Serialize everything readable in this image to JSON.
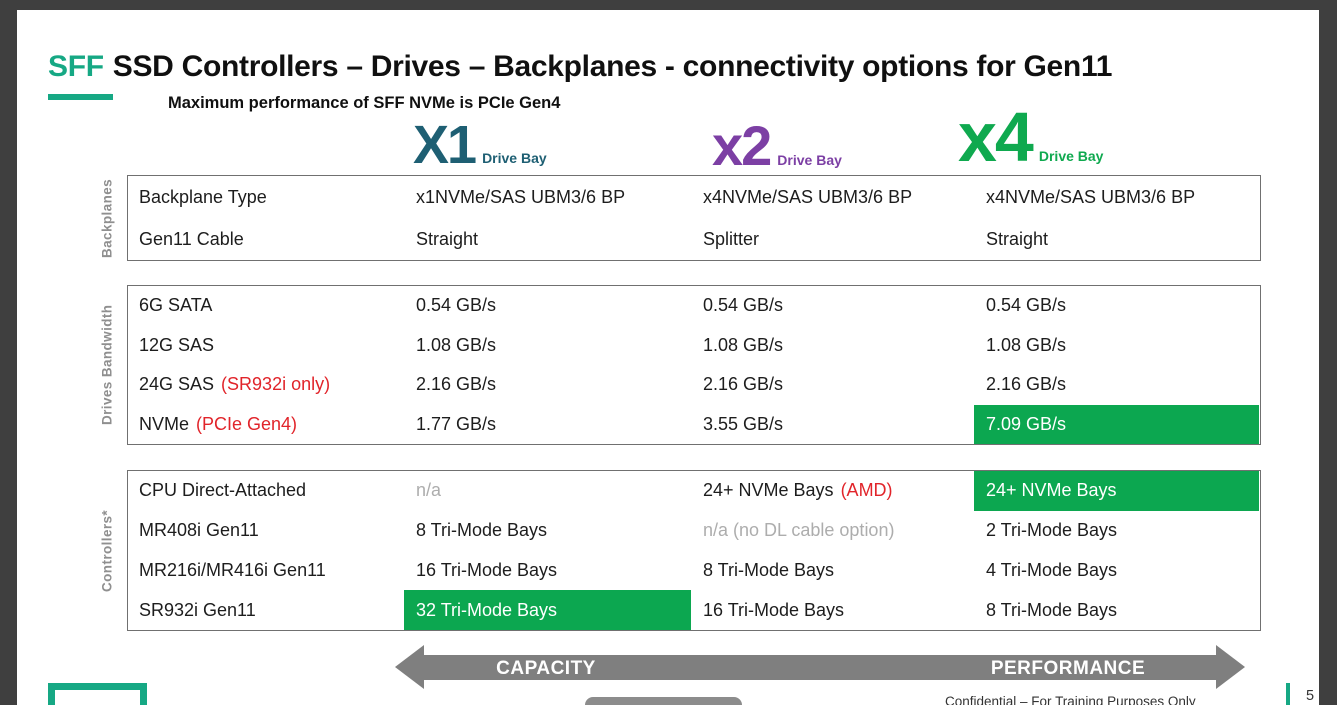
{
  "title": {
    "highlight": "SFF",
    "rest": "SSD Controllers – Drives – Backplanes - connectivity options for Gen11"
  },
  "subtitle": "Maximum performance of SFF NVMe is PCIe Gen4",
  "columns": [
    {
      "big": "X1",
      "small": "Drive Bay",
      "color": "#1E5F73"
    },
    {
      "big": "x2",
      "small": "Drive Bay",
      "color": "#7C3FA4"
    },
    {
      "big": "x4",
      "small": "Drive Bay",
      "color": "#0FA94F"
    }
  ],
  "sections": [
    {
      "label": "Backplanes",
      "rows": [
        {
          "label": "Backplane Type",
          "cells": [
            {
              "text": "x1NVMe/SAS UBM3/6 BP"
            },
            {
              "text": "x4NVMe/SAS UBM3/6 BP"
            },
            {
              "text": "x4NVMe/SAS UBM3/6 BP"
            }
          ]
        },
        {
          "label": "Gen11 Cable",
          "cells": [
            {
              "text": "Straight"
            },
            {
              "text": "Splitter"
            },
            {
              "text": "Straight"
            }
          ]
        }
      ]
    },
    {
      "label": "Drives Bandwidth",
      "rows": [
        {
          "label": "6G SATA",
          "cells": [
            {
              "text": "0.54 GB/s"
            },
            {
              "text": "0.54 GB/s"
            },
            {
              "text": "0.54 GB/s"
            }
          ]
        },
        {
          "label": "12G SAS",
          "cells": [
            {
              "text": "1.08 GB/s"
            },
            {
              "text": "1.08 GB/s"
            },
            {
              "text": "1.08 GB/s"
            }
          ]
        },
        {
          "label": "24G SAS",
          "note": "(SR932i only)",
          "cells": [
            {
              "text": "2.16 GB/s"
            },
            {
              "text": "2.16 GB/s"
            },
            {
              "text": "2.16 GB/s"
            }
          ]
        },
        {
          "label": "NVMe",
          "note": "(PCIe Gen4)",
          "cells": [
            {
              "text": "1.77 GB/s"
            },
            {
              "text": "3.55 GB/s"
            },
            {
              "text": "7.09 GB/s",
              "highlight": true
            }
          ]
        }
      ]
    },
    {
      "label": "Controllers*",
      "rows": [
        {
          "label": "CPU Direct-Attached",
          "cells": [
            {
              "text": "n/a",
              "muted": true
            },
            {
              "text": "24+ NVMe Bays",
              "note": "(AMD)"
            },
            {
              "text": "24+ NVMe Bays",
              "highlight": true
            }
          ]
        },
        {
          "label": "MR408i Gen11",
          "cells": [
            {
              "text": "8 Tri-Mode Bays"
            },
            {
              "text": "n/a (no DL cable option)",
              "muted": true
            },
            {
              "text": "2 Tri-Mode Bays"
            }
          ]
        },
        {
          "label": "MR216i/MR416i Gen11",
          "cells": [
            {
              "text": "16 Tri-Mode Bays"
            },
            {
              "text": "8 Tri-Mode Bays"
            },
            {
              "text": "4 Tri-Mode Bays"
            }
          ]
        },
        {
          "label": "SR932i Gen11",
          "cells": [
            {
              "text": "32 Tri-Mode Bays",
              "highlight": true
            },
            {
              "text": "16 Tri-Mode Bays"
            },
            {
              "text": "8 Tri-Mode Bays"
            }
          ]
        }
      ]
    }
  ],
  "arrow": {
    "left_label": "CAPACITY",
    "right_label": "PERFORMANCE"
  },
  "footer": {
    "confidential": "Confidential – For Training Purposes Only",
    "page_number": "5"
  },
  "colors": {
    "hpe_green": "#16A884",
    "highlight_green": "#0CA750",
    "x1_teal": "#1E5F73",
    "x2_purple": "#7C3FA4",
    "x4_green": "#0FA94F",
    "alert_red": "#E1242A",
    "muted_gray": "#ADADAD",
    "arrow_gray": "#7F7F7F",
    "frame_gray": "#3F3F3F"
  }
}
